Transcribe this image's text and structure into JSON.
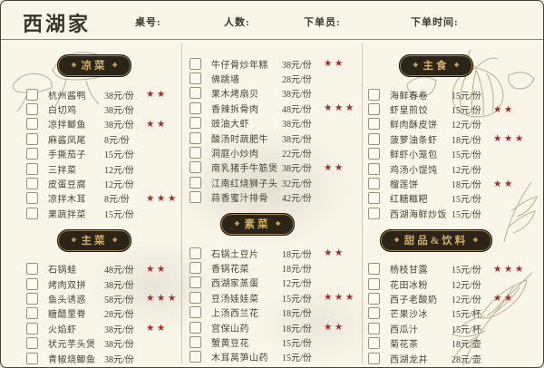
{
  "header": {
    "title": "西湖家",
    "fields": [
      {
        "label": "桌号:"
      },
      {
        "label": "人数:"
      },
      {
        "label": "下单员:"
      },
      {
        "label": "下单时间:"
      }
    ]
  },
  "icons": {
    "star": "★",
    "badge_ornament": "❖"
  },
  "colors": {
    "paper": "#f9f5e8",
    "accent_red": "#a72a2c",
    "badge_bg": "#2a2419",
    "badge_gold": "#d6ad62",
    "ink": "#47433a"
  },
  "menu": {
    "columns": [
      {
        "sections": [
          {
            "title": "凉菜",
            "items": [
              {
                "name": "杭州酱鸭",
                "price": "38元/份",
                "stars": 2
              },
              {
                "name": "白切鸡",
                "price": "38元/份",
                "stars": 0
              },
              {
                "name": "凉拌鲫鱼",
                "price": "38元/份",
                "stars": 2
              },
              {
                "name": "麻酱凤尾",
                "price": "8元/份",
                "stars": 0
              },
              {
                "name": "手撕茄子",
                "price": "15元/份",
                "stars": 0
              },
              {
                "name": "三拌菜",
                "price": "12元/份",
                "stars": 0
              },
              {
                "name": "皮蛋豆腐",
                "price": "12元/份",
                "stars": 0
              },
              {
                "name": "凉拌木耳",
                "price": "8元/份",
                "stars": 3
              },
              {
                "name": "果蔬拌菜",
                "price": "15元/份",
                "stars": 0
              }
            ]
          },
          {
            "title": "主菜",
            "items": [
              {
                "name": "石锅蛙",
                "price": "48元/份",
                "stars": 2
              },
              {
                "name": "烤肉双拼",
                "price": "38元/份",
                "stars": 0
              },
              {
                "name": "鱼头诱惑",
                "price": "58元/份",
                "stars": 3
              },
              {
                "name": "糖醋里脊",
                "price": "28元/份",
                "stars": 0
              },
              {
                "name": "火焰虾",
                "price": "38元/份",
                "stars": 2
              },
              {
                "name": "状元芋头煲",
                "price": "38元/份",
                "stars": 0
              },
              {
                "name": "青椒烧鲫鱼",
                "price": "38元/份",
                "stars": 0
              }
            ]
          }
        ]
      },
      {
        "sections": [
          {
            "title": "",
            "items": [
              {
                "name": "牛仔骨炒年糕",
                "price": "38元/份",
                "stars": 2
              },
              {
                "name": "佛跳墙",
                "price": "28元/份",
                "stars": 0
              },
              {
                "name": "果木烤扇贝",
                "price": "38元/份",
                "stars": 0
              },
              {
                "name": "香辣拆骨肉",
                "price": "48元/份",
                "stars": 3
              },
              {
                "name": "豉油大虾",
                "price": "38元/份",
                "stars": 0
              },
              {
                "name": "酸汤时蔬肥牛",
                "price": "38元/份",
                "stars": 0
              },
              {
                "name": "洞庭小炒肉",
                "price": "22元/份",
                "stars": 0
              },
              {
                "name": "南乳猪手牛筋煲",
                "price": "38元/份",
                "stars": 2
              },
              {
                "name": "江南红烧狮子头",
                "price": "32元/份",
                "stars": 0
              },
              {
                "name": "蒜香蜜汁排骨",
                "price": "42元/份",
                "stars": 0
              }
            ]
          },
          {
            "title": "素菜",
            "items": [
              {
                "name": "石锅土豆片",
                "price": "18元/份",
                "stars": 2
              },
              {
                "name": "香锅花菜",
                "price": "18元/份",
                "stars": 0
              },
              {
                "name": "西湖家蒸蛋",
                "price": "12元/份",
                "stars": 0
              },
              {
                "name": "豆汤娃娃菜",
                "price": "15元/份",
                "stars": 3
              },
              {
                "name": "上汤西兰花",
                "price": "18元/份",
                "stars": 0
              },
              {
                "name": "宫保山药",
                "price": "18元/份",
                "stars": 2
              },
              {
                "name": "蟹黄豆花",
                "price": "15元/份",
                "stars": 0
              },
              {
                "name": "木耳莴笋山药",
                "price": "15元/份",
                "stars": 0
              }
            ]
          }
        ]
      },
      {
        "sections": [
          {
            "title": "主食",
            "items": [
              {
                "name": "海鲜春卷",
                "price": "15元/份",
                "stars": 0
              },
              {
                "name": "虾皇煎饺",
                "price": "15元/份",
                "stars": 2
              },
              {
                "name": "鲜肉酥皮饼",
                "price": "12元/份",
                "stars": 0
              },
              {
                "name": "菠萝油条虾",
                "price": "18元/份",
                "stars": 3
              },
              {
                "name": "鲜虾小笼包",
                "price": "15元/份",
                "stars": 0
              },
              {
                "name": "鸡汤小馄饨",
                "price": "12元/份",
                "stars": 0
              },
              {
                "name": "榴莲饼",
                "price": "18元/份",
                "stars": 2
              },
              {
                "name": "红糖糍粑",
                "price": "15元/份",
                "stars": 0
              },
              {
                "name": "西湖海鲜炒饭",
                "price": "15元/份",
                "stars": 0
              }
            ]
          },
          {
            "title": "甜品&饮料",
            "items": [
              {
                "name": "杨枝甘露",
                "price": "15元/份",
                "stars": 3
              },
              {
                "name": "花田冰粉",
                "price": "12元/份",
                "stars": 0
              },
              {
                "name": "西子老酸奶",
                "price": "12元/份",
                "stars": 2
              },
              {
                "name": "芒果沙冰",
                "price": "15元/杯",
                "stars": 0
              },
              {
                "name": "西瓜汁",
                "price": "15元/杯",
                "stars": 0
              },
              {
                "name": "菊花茶",
                "price": "18元/壶",
                "stars": 0
              },
              {
                "name": "西湖龙井",
                "price": "28元/壶",
                "stars": 0
              }
            ]
          }
        ]
      }
    ]
  }
}
